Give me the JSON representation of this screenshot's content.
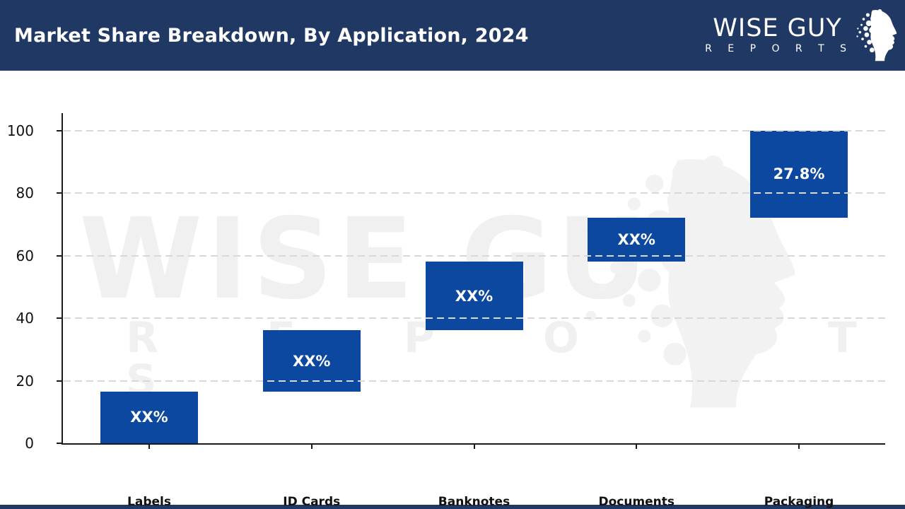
{
  "header": {
    "title": "Market Share Breakdown, By Application, 2024",
    "logo": {
      "wordmark": "WISE GUY",
      "subtext": "R E P O R T S"
    }
  },
  "watermark": {
    "wordmark": "WISE GUY",
    "subtext": "R E P O R T S"
  },
  "colors": {
    "header_bg": "#203864",
    "bar_fill": "#0c47a0",
    "bar_label": "#ffffff",
    "grid_line": "#d8d8d8",
    "axis_line": "#1a1a1a",
    "tick_label": "#111111",
    "watermark_gray": "#f0f0f1"
  },
  "chart_data": {
    "type": "bar",
    "variant": "floating-waterfall",
    "title": "Market Share Breakdown, By Application, 2024",
    "categories": [
      "Labels",
      "ID Cards",
      "Banknotes",
      "Documents",
      "Packaging"
    ],
    "segments": [
      {
        "category": "Labels",
        "start": 0,
        "end": 16.6,
        "label": "XX%"
      },
      {
        "category": "ID Cards",
        "start": 16.6,
        "end": 36.1,
        "label": "XX%"
      },
      {
        "category": "Banknotes",
        "start": 36.1,
        "end": 58.2,
        "label": "XX%"
      },
      {
        "category": "Documents",
        "start": 58.2,
        "end": 72.2,
        "label": "XX%"
      },
      {
        "category": "Packaging",
        "start": 72.2,
        "end": 100,
        "label": "27.8%"
      }
    ],
    "ylim": [
      0,
      100
    ],
    "yticks": [
      0,
      20,
      40,
      60,
      80,
      100
    ],
    "xlabel": "",
    "ylabel": "",
    "grid": "horizontal-dashed",
    "legend": null
  }
}
